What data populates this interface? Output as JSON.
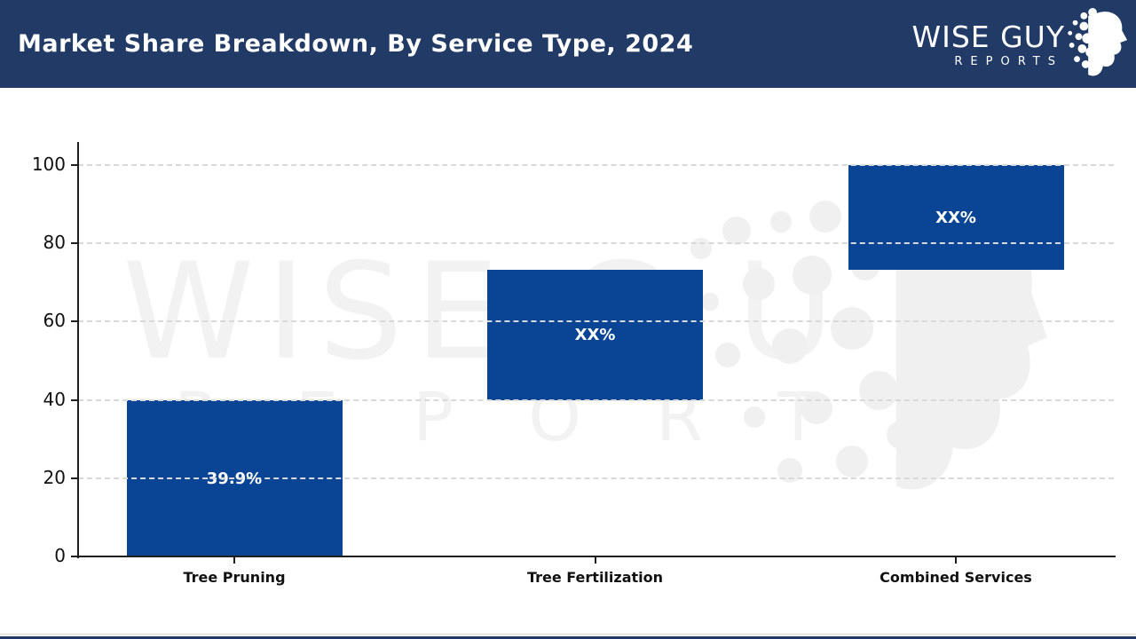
{
  "header": {
    "title": "Market Share Breakdown, By Service Type, 2024",
    "logo_line1": "WISE GUY",
    "logo_line2": "REPORTS"
  },
  "watermark": {
    "line1": "WISE G U Y",
    "line2": "R E P O R T S"
  },
  "chart_data": {
    "type": "bar",
    "subtype": "floating-segment-waterfall",
    "title": "Market Share Breakdown, By Service Type, 2024",
    "categories": [
      "Tree Pruning",
      "Tree Fertilization",
      "Combined Services"
    ],
    "segments": [
      {
        "category": "Tree Pruning",
        "start": 0,
        "end": 39.9,
        "label": "39.9%"
      },
      {
        "category": "Tree Fertilization",
        "start": 39.9,
        "end": 73.2,
        "label": "XX%"
      },
      {
        "category": "Combined Services",
        "start": 73.2,
        "end": 100,
        "label": "XX%"
      }
    ],
    "ylim": [
      0,
      100
    ],
    "yticks": [
      0,
      20,
      40,
      60,
      80,
      100
    ],
    "xlabel": "",
    "ylabel": "",
    "grid": "dashed-horizontal",
    "legend": "none"
  },
  "colors": {
    "header_bg": "#213a66",
    "bar_fill": "#0a4595",
    "bar_label": "#ffffff",
    "axis": "#1f1f1f",
    "grid": "#d9d9d9",
    "watermark": "#f2f2f2"
  }
}
